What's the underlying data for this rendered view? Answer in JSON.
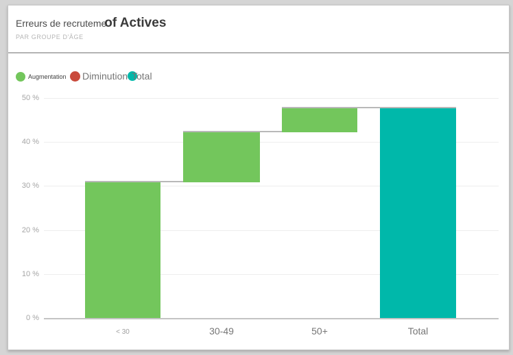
{
  "card": {
    "title_left": "Erreurs de recruteme",
    "title_right": "of Actives",
    "subtitle": "PAR GROUPE D'ÂGE"
  },
  "legend": {
    "position": "top-left",
    "items": [
      {
        "label": "Augmentation",
        "color": "#73c65c",
        "role": "increase"
      },
      {
        "label": "Diminution",
        "color": "#c94a3c",
        "role": "decrease"
      },
      {
        "label": "Total",
        "color": "#00b8aa",
        "role": "total"
      }
    ]
  },
  "chart_data": {
    "type": "bar",
    "subtype": "waterfall",
    "title": "Erreurs de recruteme of Actives",
    "subtitle": "PAR GROUPE D'ÂGE",
    "xlabel": "",
    "ylabel": "",
    "categories": [
      "< 30",
      "30-49",
      "50+",
      "Total"
    ],
    "segments": [
      {
        "category": "< 30",
        "start": 0,
        "end": 30.8,
        "delta": 30.8,
        "role": "increase"
      },
      {
        "category": "30-49",
        "start": 30.8,
        "end": 42.2,
        "delta": 11.4,
        "role": "increase"
      },
      {
        "category": "50+",
        "start": 42.2,
        "end": 47.6,
        "delta": 5.4,
        "role": "increase"
      },
      {
        "category": "Total",
        "start": 0,
        "end": 47.6,
        "delta": 47.6,
        "role": "total"
      }
    ],
    "series": [
      {
        "name": "Augmentation",
        "role": "increase",
        "values": [
          30.8,
          11.4,
          5.4,
          0
        ]
      },
      {
        "name": "Diminution",
        "role": "decrease",
        "values": [
          0,
          0,
          0,
          0
        ]
      },
      {
        "name": "Total",
        "role": "total",
        "values": [
          0,
          0,
          0,
          47.6
        ]
      }
    ],
    "cumulative": [
      30.8,
      42.2,
      47.6,
      47.6
    ],
    "y_axis": {
      "ticks": [
        0,
        10,
        20,
        30,
        40,
        50
      ],
      "tick_labels": [
        "0 %",
        "10 %",
        "20 %",
        "30 %",
        "40 %",
        "50 %"
      ],
      "ylim": [
        0,
        50
      ],
      "grid": true
    },
    "colors": {
      "increase": "#73c65c",
      "decrease": "#c94a3c",
      "total": "#00b8aa",
      "gridline": "#ededed",
      "axis_line": "#c4c4c4",
      "connector": "#b8b8b8"
    },
    "legend_position": "top-left"
  }
}
